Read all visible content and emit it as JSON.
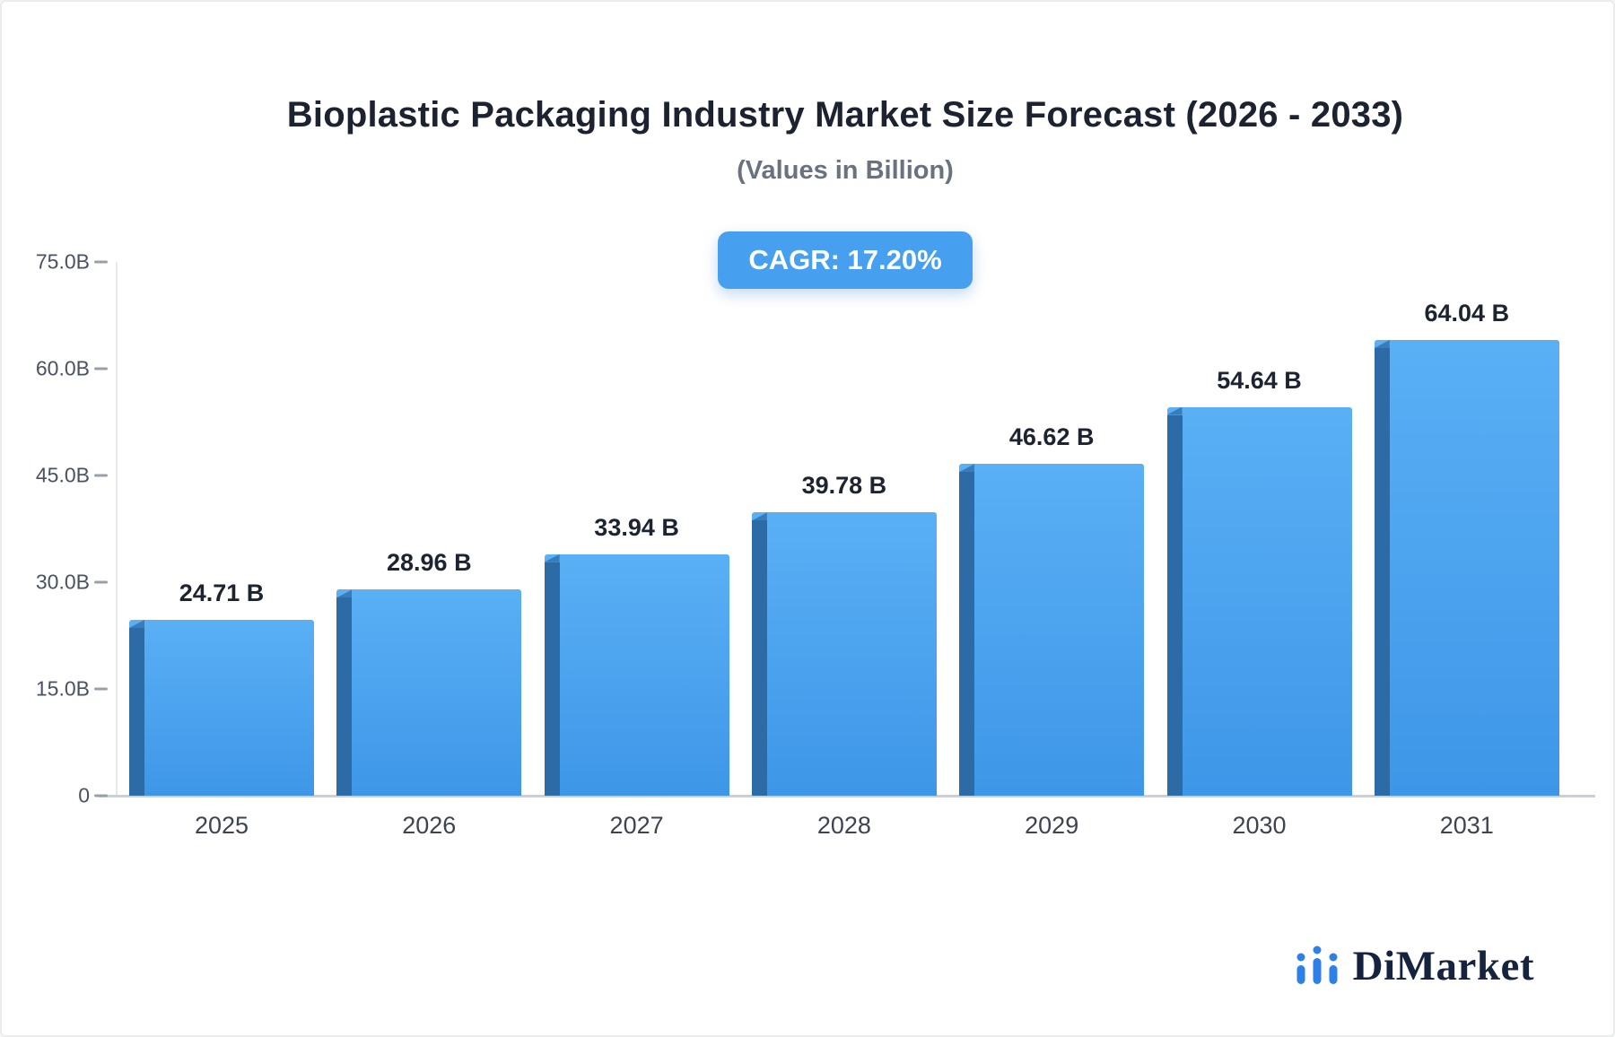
{
  "chart_data": {
    "type": "bar",
    "title": "Bioplastic Packaging Industry Market Size Forecast (2026 - 2033)",
    "subtitle": "(Values in Billion)",
    "annotation": "CAGR: 17.20%",
    "categories": [
      "2025",
      "2026",
      "2027",
      "2028",
      "2029",
      "2030",
      "2031"
    ],
    "values": [
      24.71,
      28.96,
      33.94,
      39.78,
      46.62,
      54.64,
      64.04
    ],
    "value_labels": [
      "24.71 B",
      "28.96 B",
      "33.94 B",
      "39.78 B",
      "46.62 B",
      "54.64 B",
      "64.04 B"
    ],
    "ylabel": "",
    "xlabel": "",
    "ylim": [
      0,
      75
    ],
    "yticks": [
      "0",
      "15.0B",
      "30.0B",
      "45.0B",
      "60.0B",
      "75.0B"
    ],
    "grid": false,
    "legend": "none"
  },
  "colors": {
    "accent": "#47a0ef",
    "bar_top": "#5ab0f5",
    "bar_bottom": "#3e96e8",
    "bar_side": "#2d6ba6",
    "axis_line": "#e6e8ec",
    "baseline": "#ccd0d4",
    "logo_navy": "#15233e",
    "logo_blue": "#2e7fe8"
  },
  "branding": {
    "logo_text": "DiMarket"
  }
}
